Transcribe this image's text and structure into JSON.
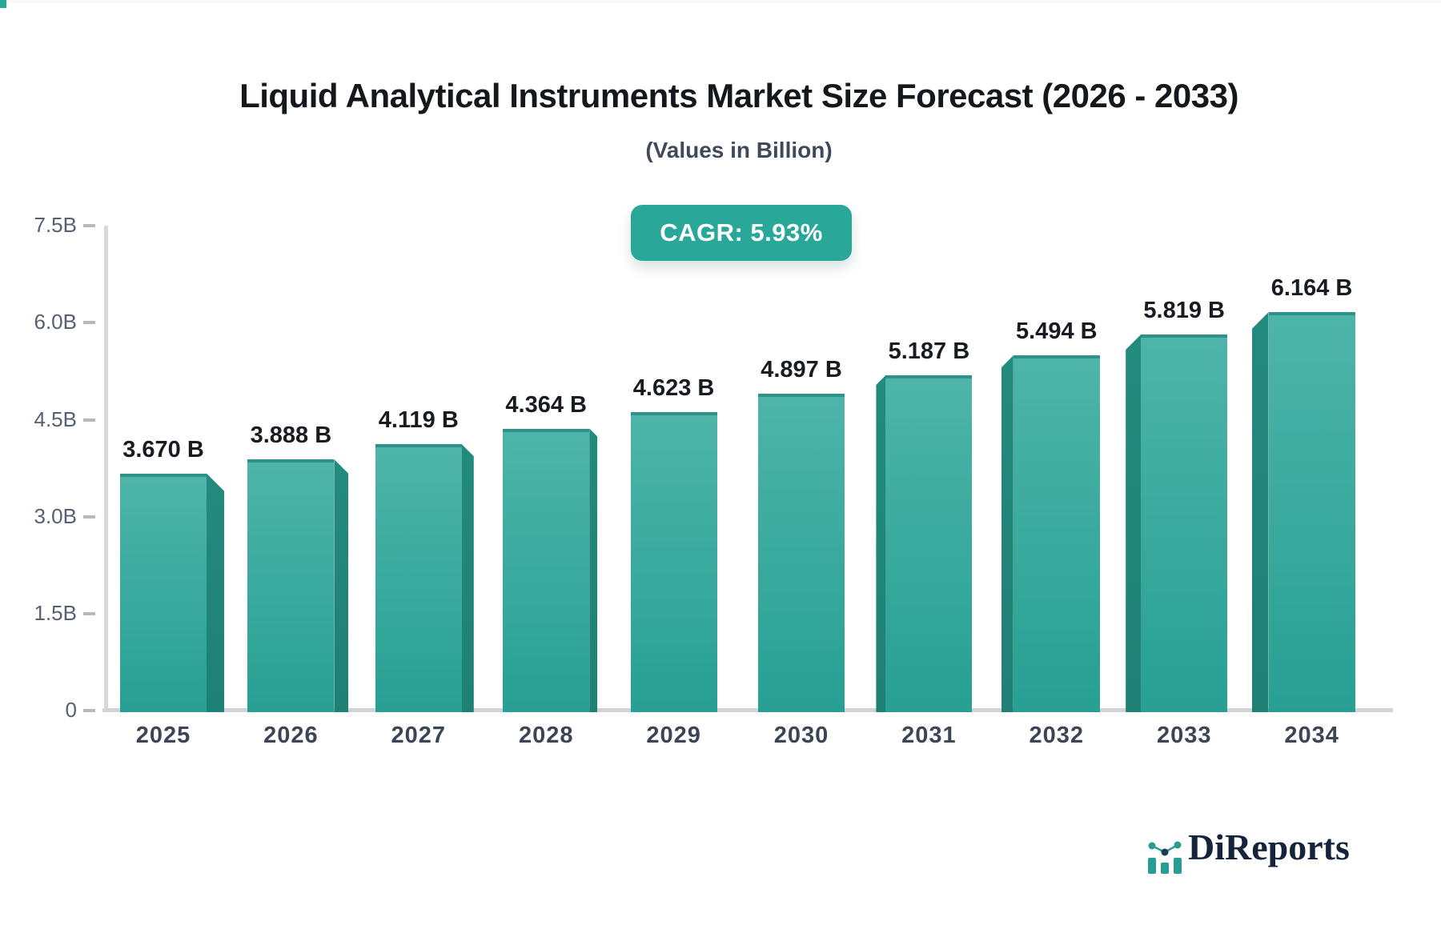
{
  "page": {
    "top_strip_color": "#f7f8fa",
    "corner_accent_color": "#2aa79b",
    "background_color": "#ffffff"
  },
  "header": {
    "title": "Liquid Analytical Instruments Market Size Forecast (2026 - 2033)",
    "subtitle": "(Values in Billion)"
  },
  "badge": {
    "label": "CAGR: 5.93%",
    "bg_color": "#29a89a",
    "text_color": "#ffffff"
  },
  "chart_data": {
    "type": "bar",
    "title": "Liquid Analytical Instruments Market Size Forecast (2026 - 2033)",
    "subtitle": "(Values in Billion)",
    "categories": [
      "2025",
      "2026",
      "2027",
      "2028",
      "2029",
      "2030",
      "2031",
      "2032",
      "2033",
      "2034"
    ],
    "values": [
      3.67,
      3.888,
      4.119,
      4.364,
      4.623,
      4.897,
      5.187,
      5.494,
      5.819,
      6.164
    ],
    "value_labels": [
      "3.670 B",
      "3.888 B",
      "4.119 B",
      "4.364 B",
      "4.623 B",
      "4.897 B",
      "5.187 B",
      "5.494 B",
      "5.819 B",
      "6.164 B"
    ],
    "unit": "Billion",
    "cagr": "5.93%",
    "ytick_values": [
      0,
      1.5,
      3.0,
      4.5,
      6.0,
      7.5
    ],
    "ytick_labels": [
      "0",
      "1.5B",
      "3.0B",
      "4.5B",
      "6.0B",
      "7.5B"
    ],
    "ylim": [
      0,
      7.5
    ],
    "xlabel": "",
    "ylabel": "",
    "legend": "none",
    "grid": false,
    "bar_color_top": "#4eb4a9",
    "bar_color_bottom": "#27a093",
    "bar_top_edge_color": "#2f9187",
    "bar_side_color": "#1f8075",
    "axis_line_color": "#d7d8dc",
    "style": "3d-bars-perspective-from-center"
  },
  "logo": {
    "text": "DiReports",
    "icon": "mini-bar-chart-icon",
    "text_color": "#15243b",
    "accent_color": "#2a9d93"
  }
}
